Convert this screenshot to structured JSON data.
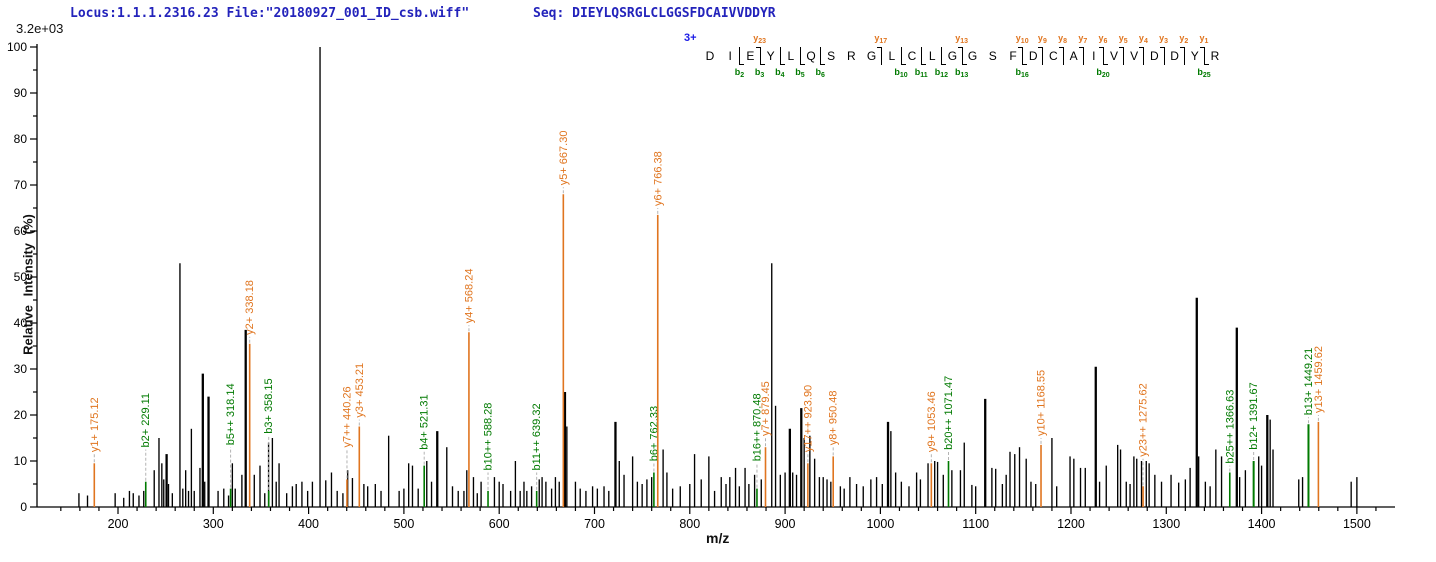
{
  "header": {
    "locus_file": "Locus:1.1.1.2316.23 File:\"20180927_001_ID_csb.wiff\"",
    "seq_label": "Seq:",
    "seq_value": "DIEYLQSRGLCLGGSFDCAIVVDDYR"
  },
  "colors": {
    "header_text": "#2323bb",
    "y_ion_orange": "#e0751f",
    "b_ion_green": "#007a00",
    "b_ion_dark_green": "#0b5e0b",
    "peak_black": "#000000",
    "leader_dash_gray": "#b3b3b3",
    "axis_black": "#000000",
    "charge_blue": "#1a1ae6"
  },
  "sequence": {
    "charge_label": "3+",
    "residues": [
      "D",
      "I",
      "E",
      "Y",
      "L",
      "Q",
      "S",
      "R",
      "G",
      "L",
      "C",
      "L",
      "G",
      "G",
      "S",
      "F",
      "D",
      "C",
      "A",
      "I",
      "V",
      "V",
      "D",
      "D",
      "Y",
      "R"
    ],
    "y_ions": [
      {
        "label": "y23",
        "after": 3
      },
      {
        "label": "y17",
        "after": 9
      },
      {
        "label": "y13",
        "after": 13
      },
      {
        "label": "y10",
        "after": 16
      },
      {
        "label": "y9",
        "after": 17
      },
      {
        "label": "y8",
        "after": 18
      },
      {
        "label": "y7",
        "after": 19
      },
      {
        "label": "y6",
        "after": 20
      },
      {
        "label": "y5",
        "after": 21
      },
      {
        "label": "y4",
        "after": 22
      },
      {
        "label": "y3",
        "after": 23
      },
      {
        "label": "y2",
        "after": 24
      },
      {
        "label": "y1",
        "after": 25
      }
    ],
    "b_ions": [
      {
        "label": "b2",
        "after": 2
      },
      {
        "label": "b3",
        "after": 3
      },
      {
        "label": "b4",
        "after": 4
      },
      {
        "label": "b5",
        "after": 5
      },
      {
        "label": "b6",
        "after": 6
      },
      {
        "label": "b10",
        "after": 10
      },
      {
        "label": "b11",
        "after": 11
      },
      {
        "label": "b12",
        "after": 12
      },
      {
        "label": "b13",
        "after": 13
      },
      {
        "label": "b16",
        "after": 16
      },
      {
        "label": "b20",
        "after": 20
      },
      {
        "label": "b25",
        "after": 25
      }
    ]
  },
  "chart_data": {
    "type": "bar",
    "subtype": "centroided MS/MS peptide fragmentation spectrum",
    "title": "",
    "xlabel": "m/z",
    "ylabel": "Relative Intensity (%)",
    "y_axis_top_label": "3.2e+03",
    "xlim": [
      115,
      1540
    ],
    "ylim": [
      0,
      100
    ],
    "x_major_ticks": [
      200,
      300,
      400,
      500,
      600,
      700,
      800,
      900,
      1000,
      1100,
      1200,
      1300,
      1400,
      1500
    ],
    "x_minor_tick_step": 20,
    "y_major_tick_step": 10,
    "y_minor_tick_step": 5,
    "grid": false,
    "annotated_peaks": [
      {
        "label": "y1+ 175.12",
        "ion": "y1",
        "charge": 1,
        "mz": 175.12,
        "series": "y",
        "intensity": 9.5,
        "label_start": 11.5
      },
      {
        "label": "b2+ 229.11",
        "ion": "b2",
        "charge": 1,
        "mz": 229.11,
        "series": "b",
        "intensity": 5.5,
        "label_start": 12.5
      },
      {
        "label": "b5++ 318.14",
        "ion": "b5",
        "charge": 2,
        "mz": 318.14,
        "series": "b",
        "intensity": 4,
        "label_start": 13
      },
      {
        "label": "y2+ 338.18",
        "ion": "y2",
        "charge": 1,
        "mz": 338.18,
        "series": "y",
        "intensity": 35.5,
        "label_start": 37
      },
      {
        "label": "b3+ 358.15",
        "ion": "b3",
        "charge": 1,
        "mz": 358.15,
        "series": "b",
        "intensity": 3.5,
        "label_start": 15.5
      },
      {
        "label": "y7++ 440.26",
        "ion": "y7",
        "charge": 2,
        "mz": 440.26,
        "series": "y",
        "intensity": 6,
        "label_start": 12.5
      },
      {
        "label": "y3+ 453.21",
        "ion": "y3",
        "charge": 1,
        "mz": 453.21,
        "series": "y",
        "intensity": 17.5,
        "label_start": 19
      },
      {
        "label": "b4+ 521.31",
        "ion": "b4",
        "charge": 1,
        "mz": 521.31,
        "series": "b",
        "intensity": 9,
        "label_start": 12
      },
      {
        "label": "y4+ 568.24",
        "ion": "y4",
        "charge": 1,
        "mz": 568.24,
        "series": "y",
        "intensity": 38,
        "label_start": 39.5
      },
      {
        "label": "b10++ 588.28",
        "ion": "b10",
        "charge": 2,
        "mz": 588.28,
        "series": "b",
        "intensity": 3.5,
        "label_start": 7.5
      },
      {
        "label": "b11++ 639.32",
        "ion": "b11",
        "charge": 2,
        "mz": 639.32,
        "series": "b",
        "intensity": 3.5,
        "label_start": 7.5
      },
      {
        "label": "y5+ 667.30",
        "ion": "y5",
        "charge": 1,
        "mz": 667.3,
        "series": "y",
        "intensity": 68,
        "label_start": 69.5
      },
      {
        "label": "b6+ 762.33",
        "ion": "b6",
        "charge": 1,
        "mz": 762.33,
        "series": "b",
        "intensity": 7.5,
        "label_start": 9.5
      },
      {
        "label": "y6+ 766.38",
        "ion": "y6",
        "charge": 1,
        "mz": 766.38,
        "series": "y",
        "intensity": 63.5,
        "label_start": 65
      },
      {
        "label": "b16++ 870.48",
        "ion": "b16",
        "charge": 2,
        "mz": 870.48,
        "series": "b",
        "intensity": 4,
        "label_start": 9.5
      },
      {
        "label": "y7+ 879.45",
        "ion": "y7",
        "charge": 1,
        "mz": 879.45,
        "series": "y",
        "intensity": 13,
        "label_start": 15
      },
      {
        "label": "y17++ 923.90",
        "ion": "y17",
        "charge": 2,
        "mz": 923.9,
        "series": "y",
        "intensity": 9.5,
        "label_start": 11.5
      },
      {
        "label": "y8+ 950.48",
        "ion": "y8",
        "charge": 1,
        "mz": 950.48,
        "series": "y",
        "intensity": 11,
        "label_start": 13
      },
      {
        "label": "y9+ 1053.46",
        "ion": "y9",
        "charge": 1,
        "mz": 1053.46,
        "series": "y",
        "intensity": 9.5,
        "label_start": 11.5
      },
      {
        "label": "b20++ 1071.47",
        "ion": "b20",
        "charge": 2,
        "mz": 1071.47,
        "series": "b",
        "intensity": 10,
        "label_start": 12
      },
      {
        "label": "y10+ 1168.55",
        "ion": "y10",
        "charge": 1,
        "mz": 1168.55,
        "series": "y",
        "intensity": 13.5,
        "label_start": 15
      },
      {
        "label": "y23++ 1275.62",
        "ion": "y23",
        "charge": 2,
        "mz": 1275.62,
        "series": "y",
        "intensity": 4.5,
        "label_start": 10.5
      },
      {
        "label": "b25++ 1366.63",
        "ion": "b25",
        "charge": 2,
        "mz": 1366.63,
        "series": "b",
        "intensity": 7.5,
        "label_start": 9
      },
      {
        "label": "b12+ 1391.67",
        "ion": "b12",
        "charge": 1,
        "mz": 1391.67,
        "series": "b",
        "intensity": 10,
        "label_start": 12
      },
      {
        "label": "b13+ 1449.21",
        "ion": "b13",
        "charge": 1,
        "mz": 1449.21,
        "series": "b",
        "intensity": 18,
        "label_start": 19.5
      },
      {
        "label": "y13+ 1459.62",
        "ion": "y13",
        "charge": 1,
        "mz": 1459.62,
        "series": "y",
        "intensity": 18.5,
        "label_start": 20
      }
    ],
    "peaks": [
      [
        159,
        3
      ],
      [
        168,
        2.5
      ],
      [
        197,
        3
      ],
      [
        206,
        2
      ],
      [
        212,
        3.5
      ],
      [
        216,
        3
      ],
      [
        222,
        2.5
      ],
      [
        227,
        3.5
      ],
      [
        238,
        8
      ],
      [
        243,
        15
      ],
      [
        246,
        9.5
      ],
      [
        248,
        6
      ],
      [
        251,
        11.5,
        2
      ],
      [
        253,
        5
      ],
      [
        257,
        3
      ],
      [
        265,
        53
      ],
      [
        268,
        4
      ],
      [
        271,
        8
      ],
      [
        274,
        3.5
      ],
      [
        277,
        17
      ],
      [
        280,
        3.5
      ],
      [
        286,
        8.5
      ],
      [
        289,
        29,
        2
      ],
      [
        291,
        5.5
      ],
      [
        295,
        24,
        2
      ],
      [
        305,
        3.5
      ],
      [
        311,
        4
      ],
      [
        316,
        2.5
      ],
      [
        320,
        9.5
      ],
      [
        323,
        4
      ],
      [
        330,
        7
      ],
      [
        334,
        38.5,
        2
      ],
      [
        343,
        7
      ],
      [
        349,
        9
      ],
      [
        354,
        3
      ],
      [
        358,
        14
      ],
      [
        362,
        15
      ],
      [
        366,
        5.5
      ],
      [
        369,
        9.5
      ],
      [
        377,
        3
      ],
      [
        383,
        4.5
      ],
      [
        387,
        5
      ],
      [
        393,
        5.5
      ],
      [
        399,
        3.5
      ],
      [
        404,
        5.5
      ],
      [
        412,
        100
      ],
      [
        418,
        5.8
      ],
      [
        424,
        7.5
      ],
      [
        430,
        3.5
      ],
      [
        436,
        3
      ],
      [
        441,
        8
      ],
      [
        446,
        6.3
      ],
      [
        458,
        5
      ],
      [
        462,
        4.5
      ],
      [
        470,
        5
      ],
      [
        476,
        3.5
      ],
      [
        484,
        15.5
      ],
      [
        495,
        3.5
      ],
      [
        500,
        4
      ],
      [
        505,
        9.5
      ],
      [
        509,
        9
      ],
      [
        515,
        4
      ],
      [
        524,
        10
      ],
      [
        529,
        5.5
      ],
      [
        535,
        16.5,
        2
      ],
      [
        545,
        13
      ],
      [
        551,
        4.5
      ],
      [
        557,
        3.5
      ],
      [
        563,
        3.5
      ],
      [
        566,
        8
      ],
      [
        573,
        6.5
      ],
      [
        577,
        3
      ],
      [
        581,
        5.5
      ],
      [
        595,
        6.5
      ],
      [
        600,
        5.5
      ],
      [
        604,
        5
      ],
      [
        612,
        3.5
      ],
      [
        617,
        10
      ],
      [
        622,
        3.5
      ],
      [
        626,
        5.5
      ],
      [
        629,
        3.5
      ],
      [
        634,
        4.5
      ],
      [
        642,
        6
      ],
      [
        645,
        6.5
      ],
      [
        649,
        5.5
      ],
      [
        655,
        4
      ],
      [
        659,
        6.5
      ],
      [
        663,
        5.5
      ],
      [
        669,
        25,
        2
      ],
      [
        671,
        17.5
      ],
      [
        680,
        5.5
      ],
      [
        685,
        4
      ],
      [
        691,
        3.5
      ],
      [
        698,
        4.5
      ],
      [
        703,
        4
      ],
      [
        710,
        4.5
      ],
      [
        715,
        3.5
      ],
      [
        722,
        18.5,
        2
      ],
      [
        726,
        10
      ],
      [
        731,
        7
      ],
      [
        740,
        11
      ],
      [
        745,
        5.5
      ],
      [
        750,
        5
      ],
      [
        755,
        6
      ],
      [
        760,
        6.5
      ],
      [
        772,
        12.5
      ],
      [
        776,
        7.5
      ],
      [
        782,
        4
      ],
      [
        790,
        4.5
      ],
      [
        800,
        5
      ],
      [
        805,
        11.5
      ],
      [
        812,
        6
      ],
      [
        820,
        11
      ],
      [
        826,
        3.5
      ],
      [
        833,
        6.5
      ],
      [
        838,
        5
      ],
      [
        842,
        6.5
      ],
      [
        848,
        8.5
      ],
      [
        852,
        4.5
      ],
      [
        858,
        8.5
      ],
      [
        862,
        5
      ],
      [
        868,
        7
      ],
      [
        875,
        6
      ],
      [
        886,
        53
      ],
      [
        890,
        22
      ],
      [
        895,
        7
      ],
      [
        900,
        7.5
      ],
      [
        905,
        17,
        2
      ],
      [
        908,
        7.5
      ],
      [
        912,
        7
      ],
      [
        917,
        21.5,
        2
      ],
      [
        920,
        15
      ],
      [
        926,
        15.5
      ],
      [
        931,
        10.5
      ],
      [
        936,
        6.5
      ],
      [
        940,
        6.5
      ],
      [
        944,
        6
      ],
      [
        948,
        5.5
      ],
      [
        958,
        4.5
      ],
      [
        962,
        4
      ],
      [
        968,
        6.5
      ],
      [
        975,
        5
      ],
      [
        982,
        4.5
      ],
      [
        990,
        6
      ],
      [
        996,
        6.5
      ],
      [
        1002,
        5
      ],
      [
        1008,
        18.5,
        2
      ],
      [
        1011,
        16.5
      ],
      [
        1016,
        7.5
      ],
      [
        1022,
        5.5
      ],
      [
        1030,
        4.5
      ],
      [
        1038,
        7.5
      ],
      [
        1042,
        6
      ],
      [
        1050,
        9.5
      ],
      [
        1057,
        10
      ],
      [
        1060,
        9.8
      ],
      [
        1066,
        7
      ],
      [
        1075,
        8
      ],
      [
        1084,
        8
      ],
      [
        1088,
        14
      ],
      [
        1096,
        4.8
      ],
      [
        1100,
        4.5
      ],
      [
        1110,
        23.5,
        2
      ],
      [
        1117,
        8.5
      ],
      [
        1121,
        8.3
      ],
      [
        1128,
        5
      ],
      [
        1132,
        7
      ],
      [
        1136,
        12
      ],
      [
        1141,
        11.5
      ],
      [
        1146,
        13
      ],
      [
        1153,
        10.5
      ],
      [
        1158,
        5.5
      ],
      [
        1163,
        5
      ],
      [
        1180,
        15
      ],
      [
        1185,
        4.5
      ],
      [
        1199,
        11
      ],
      [
        1203,
        10.5
      ],
      [
        1210,
        8.5
      ],
      [
        1215,
        8.5
      ],
      [
        1226,
        30.5,
        2
      ],
      [
        1230,
        5.5
      ],
      [
        1237,
        9
      ],
      [
        1249,
        13.5
      ],
      [
        1252,
        12.5
      ],
      [
        1258,
        5.5
      ],
      [
        1262,
        5
      ],
      [
        1266,
        11
      ],
      [
        1269,
        10.5
      ],
      [
        1274,
        10
      ],
      [
        1279,
        10
      ],
      [
        1282,
        9.5
      ],
      [
        1288,
        7
      ],
      [
        1295,
        5.5
      ],
      [
        1305,
        7
      ],
      [
        1313,
        5.3
      ],
      [
        1320,
        6
      ],
      [
        1325,
        8.5
      ],
      [
        1332,
        45.5,
        2
      ],
      [
        1334,
        11
      ],
      [
        1341,
        5.5
      ],
      [
        1346,
        4.5
      ],
      [
        1352,
        12.5
      ],
      [
        1358,
        11
      ],
      [
        1374,
        39,
        2
      ],
      [
        1377,
        6.5
      ],
      [
        1383,
        8
      ],
      [
        1397,
        11
      ],
      [
        1400,
        9
      ],
      [
        1406,
        20,
        2
      ],
      [
        1409,
        19
      ],
      [
        1412,
        12.5
      ],
      [
        1439,
        6
      ],
      [
        1443,
        6.5
      ],
      [
        1494,
        5.5
      ],
      [
        1500,
        6.5
      ]
    ]
  }
}
